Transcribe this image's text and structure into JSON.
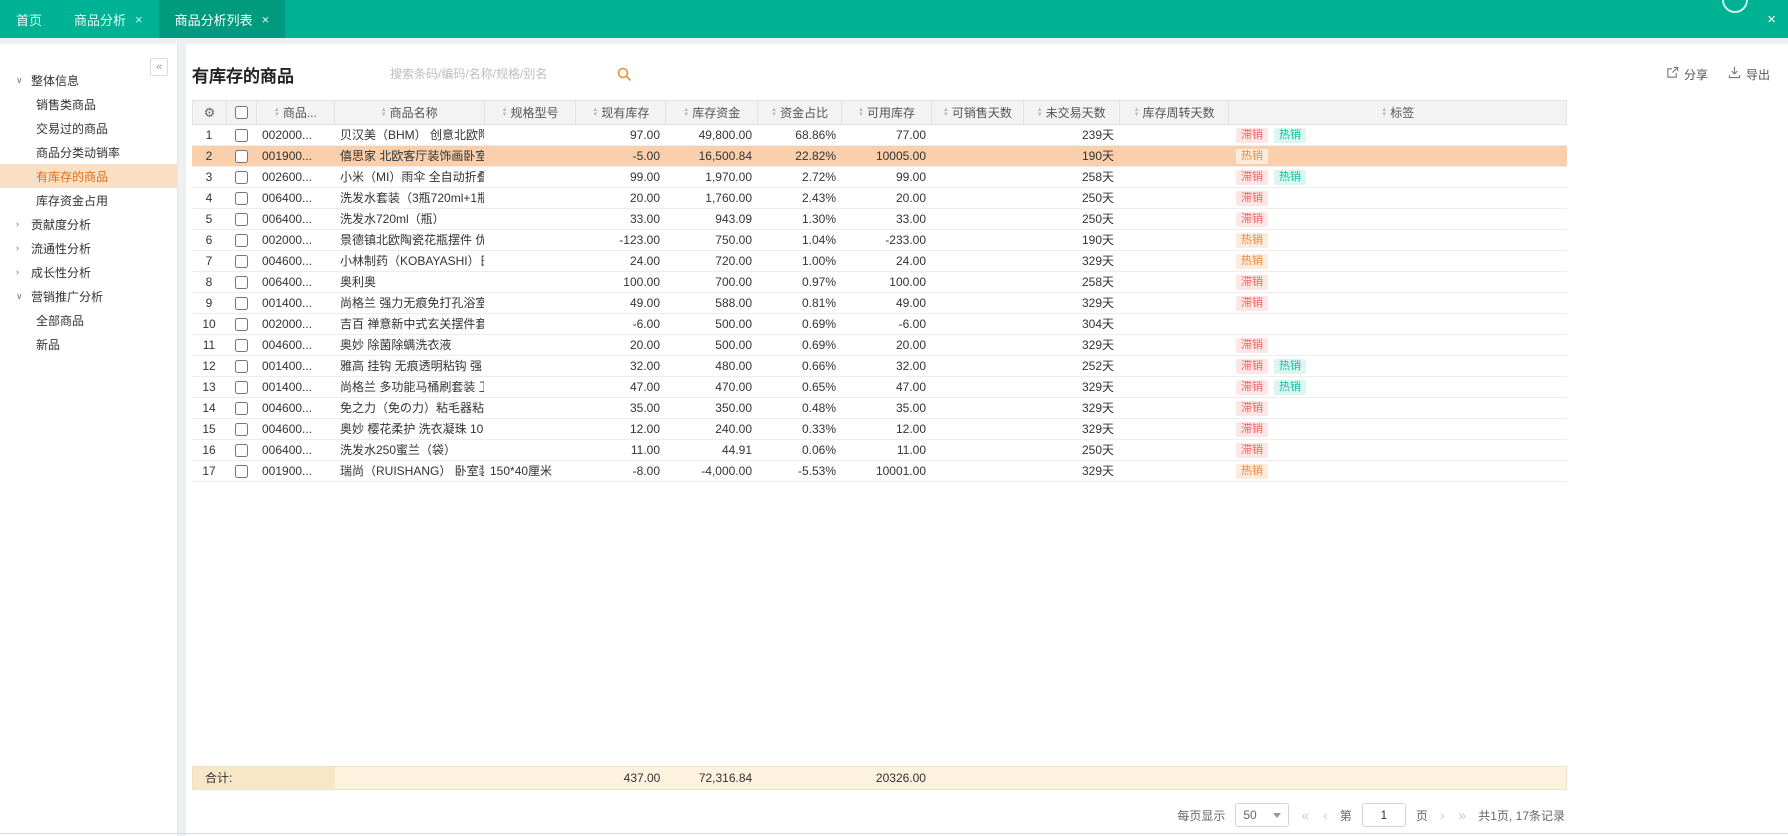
{
  "topbar": {
    "tabs": [
      {
        "label": "首页",
        "active": false,
        "closable": false
      },
      {
        "label": "商品分析",
        "active": false,
        "closable": true
      },
      {
        "label": "商品分析列表",
        "active": true,
        "closable": true
      }
    ]
  },
  "sidebar": {
    "collapse_label": "«",
    "items": [
      {
        "label": "整体信息",
        "level": 0,
        "expanded": true,
        "selected": false
      },
      {
        "label": "销售类商品",
        "level": 1,
        "selected": false
      },
      {
        "label": "交易过的商品",
        "level": 1,
        "selected": false
      },
      {
        "label": "商品分类动销率",
        "level": 1,
        "selected": false
      },
      {
        "label": "有库存的商品",
        "level": 1,
        "selected": true
      },
      {
        "label": "库存资金占用",
        "level": 1,
        "selected": false
      },
      {
        "label": "贡献度分析",
        "level": 0,
        "expanded": false,
        "selected": false
      },
      {
        "label": "流通性分析",
        "level": 0,
        "expanded": false,
        "selected": false
      },
      {
        "label": "成长性分析",
        "level": 0,
        "expanded": false,
        "selected": false
      },
      {
        "label": "营销推广分析",
        "level": 0,
        "expanded": true,
        "selected": false
      },
      {
        "label": "全部商品",
        "level": 1,
        "selected": false
      },
      {
        "label": "新品",
        "level": 1,
        "selected": false
      }
    ]
  },
  "main": {
    "title": "有库存的商品",
    "search_placeholder": "搜索条码/编码/名称/规格/别名",
    "actions": [
      {
        "label": "分享"
      },
      {
        "label": "导出"
      }
    ]
  },
  "table": {
    "columns": [
      "商品...",
      "商品名称",
      "规格型号",
      "现有库存",
      "库存资金",
      "资金占比",
      "可用库存",
      "可销售天数",
      "未交易天数",
      "库存周转天数",
      "标签"
    ],
    "rows": [
      {
        "index": "1",
        "code": "002000...",
        "name": "贝汉美（BHM） 创意北欧陶",
        "spec": "",
        "stock": "97.00",
        "fund": "49,800.00",
        "ratio": "68.86%",
        "available": "77.00",
        "sellable_days": "",
        "no_trade_days": "239天",
        "turnover_days": "",
        "tags": [
          {
            "label": "滞销",
            "type": "red"
          },
          {
            "label": "热销",
            "type": "teal"
          }
        ],
        "highlighted": false
      },
      {
        "index": "2",
        "code": "001900...",
        "name": "僖思家 北欧客厅装饰画卧室",
        "spec": "",
        "stock": "-5.00",
        "fund": "16,500.84",
        "ratio": "22.82%",
        "available": "10005.00",
        "sellable_days": "",
        "no_trade_days": "190天",
        "turnover_days": "",
        "tags": [
          {
            "label": "热销",
            "type": "orange"
          }
        ],
        "highlighted": true
      },
      {
        "index": "3",
        "code": "002600...",
        "name": "小米（MI）雨伞 全自动折叠",
        "spec": "",
        "stock": "99.00",
        "fund": "1,970.00",
        "ratio": "2.72%",
        "available": "99.00",
        "sellable_days": "",
        "no_trade_days": "258天",
        "turnover_days": "",
        "tags": [
          {
            "label": "滞销",
            "type": "red"
          },
          {
            "label": "热销",
            "type": "teal"
          }
        ],
        "highlighted": false
      },
      {
        "index": "4",
        "code": "006400...",
        "name": "洗发水套装（3瓶720ml+1瓶",
        "spec": "",
        "stock": "20.00",
        "fund": "1,760.00",
        "ratio": "2.43%",
        "available": "20.00",
        "sellable_days": "",
        "no_trade_days": "250天",
        "turnover_days": "",
        "tags": [
          {
            "label": "滞销",
            "type": "red"
          }
        ],
        "highlighted": false
      },
      {
        "index": "5",
        "code": "006400...",
        "name": "洗发水720ml（瓶）",
        "spec": "",
        "stock": "33.00",
        "fund": "943.09",
        "ratio": "1.30%",
        "available": "33.00",
        "sellable_days": "",
        "no_trade_days": "250天",
        "turnover_days": "",
        "tags": [
          {
            "label": "滞销",
            "type": "red"
          }
        ],
        "highlighted": false
      },
      {
        "index": "6",
        "code": "002000...",
        "name": "景德镇北欧陶瓷花瓶摆件 优",
        "spec": "",
        "stock": "-123.00",
        "fund": "750.00",
        "ratio": "1.04%",
        "available": "-233.00",
        "sellable_days": "",
        "no_trade_days": "190天",
        "turnover_days": "",
        "tags": [
          {
            "label": "热销",
            "type": "orange"
          }
        ],
        "highlighted": false
      },
      {
        "index": "7",
        "code": "004600...",
        "name": "小林制药（KOBAYASHI）日",
        "spec": "",
        "stock": "24.00",
        "fund": "720.00",
        "ratio": "1.00%",
        "available": "24.00",
        "sellable_days": "",
        "no_trade_days": "329天",
        "turnover_days": "",
        "tags": [
          {
            "label": "热销",
            "type": "orange"
          }
        ],
        "highlighted": false
      },
      {
        "index": "8",
        "code": "006400...",
        "name": "奥利奥",
        "spec": "",
        "stock": "100.00",
        "fund": "700.00",
        "ratio": "0.97%",
        "available": "100.00",
        "sellable_days": "",
        "no_trade_days": "258天",
        "turnover_days": "",
        "tags": [
          {
            "label": "滞销",
            "type": "red"
          }
        ],
        "highlighted": false
      },
      {
        "index": "9",
        "code": "001400...",
        "name": "尚格兰 强力无痕免打孔浴室",
        "spec": "",
        "stock": "49.00",
        "fund": "588.00",
        "ratio": "0.81%",
        "available": "49.00",
        "sellable_days": "",
        "no_trade_days": "329天",
        "turnover_days": "",
        "tags": [
          {
            "label": "滞销",
            "type": "red"
          }
        ],
        "highlighted": false
      },
      {
        "index": "10",
        "code": "002000...",
        "name": "吉百 禅意新中式玄关摆件套",
        "spec": "",
        "stock": "-6.00",
        "fund": "500.00",
        "ratio": "0.69%",
        "available": "-6.00",
        "sellable_days": "",
        "no_trade_days": "304天",
        "turnover_days": "",
        "tags": [],
        "highlighted": false
      },
      {
        "index": "11",
        "code": "004600...",
        "name": "奥妙 除菌除螨洗衣液",
        "spec": "",
        "stock": "20.00",
        "fund": "500.00",
        "ratio": "0.69%",
        "available": "20.00",
        "sellable_days": "",
        "no_trade_days": "329天",
        "turnover_days": "",
        "tags": [
          {
            "label": "滞销",
            "type": "red"
          }
        ],
        "highlighted": false
      },
      {
        "index": "12",
        "code": "001400...",
        "name": "雅高 挂钩 无痕透明粘钩 强",
        "spec": "",
        "stock": "32.00",
        "fund": "480.00",
        "ratio": "0.66%",
        "available": "32.00",
        "sellable_days": "",
        "no_trade_days": "252天",
        "turnover_days": "",
        "tags": [
          {
            "label": "滞销",
            "type": "red"
          },
          {
            "label": "热销",
            "type": "teal"
          }
        ],
        "highlighted": false
      },
      {
        "index": "13",
        "code": "001400...",
        "name": "尚格兰 多功能马桶刷套装 卫",
        "spec": "",
        "stock": "47.00",
        "fund": "470.00",
        "ratio": "0.65%",
        "available": "47.00",
        "sellable_days": "",
        "no_trade_days": "329天",
        "turnover_days": "",
        "tags": [
          {
            "label": "滞销",
            "type": "red"
          },
          {
            "label": "热销",
            "type": "teal"
          }
        ],
        "highlighted": false
      },
      {
        "index": "14",
        "code": "004600...",
        "name": "免之力（免の力）粘毛器粘",
        "spec": "",
        "stock": "35.00",
        "fund": "350.00",
        "ratio": "0.48%",
        "available": "35.00",
        "sellable_days": "",
        "no_trade_days": "329天",
        "turnover_days": "",
        "tags": [
          {
            "label": "滞销",
            "type": "red"
          }
        ],
        "highlighted": false
      },
      {
        "index": "15",
        "code": "004600...",
        "name": "奥妙 樱花柔护 洗衣凝珠 10",
        "spec": "",
        "stock": "12.00",
        "fund": "240.00",
        "ratio": "0.33%",
        "available": "12.00",
        "sellable_days": "",
        "no_trade_days": "329天",
        "turnover_days": "",
        "tags": [
          {
            "label": "滞销",
            "type": "red"
          }
        ],
        "highlighted": false
      },
      {
        "index": "16",
        "code": "006400...",
        "name": "洗发水250蜜兰（袋）",
        "spec": "",
        "stock": "11.00",
        "fund": "44.91",
        "ratio": "0.06%",
        "available": "11.00",
        "sellable_days": "",
        "no_trade_days": "250天",
        "turnover_days": "",
        "tags": [
          {
            "label": "滞销",
            "type": "red"
          }
        ],
        "highlighted": false
      },
      {
        "index": "17",
        "code": "001900...",
        "name": "瑞尚（RUISHANG） 卧室装",
        "spec": "150*40厘米",
        "stock": "-8.00",
        "fund": "-4,000.00",
        "ratio": "-5.53%",
        "available": "10001.00",
        "sellable_days": "",
        "no_trade_days": "329天",
        "turnover_days": "",
        "tags": [
          {
            "label": "热销",
            "type": "orange"
          }
        ],
        "highlighted": false
      }
    ],
    "summary": {
      "label": "合计:",
      "stock": "437.00",
      "fund": "72,316.84",
      "available": "20326.00"
    }
  },
  "pagination": {
    "page_size_label": "每页显示",
    "page_size": "50",
    "page_prefix": "第",
    "page_suffix": "页",
    "page_value": "1",
    "total": "共1页, 17条记录"
  },
  "colors": {
    "topbar": "#00b294",
    "topbar_active_tab": "#009a7e",
    "accent": "#f08c3c",
    "row_highlight": "#f9d0ab",
    "selected_menu_bg": "#fbdfc5",
    "summary_bg": "#fdf2de",
    "tag_red": "#f5615c",
    "tag_teal": "#0fbfa5",
    "tag_orange": "#f0883a"
  }
}
